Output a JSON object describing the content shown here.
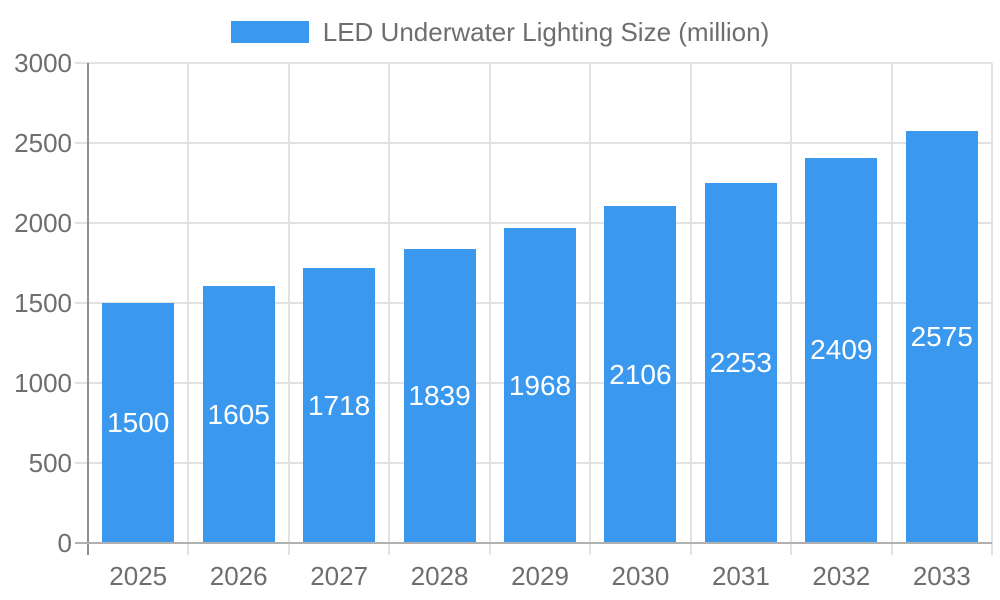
{
  "legend": {
    "label": "LED Underwater Lighting Size (million)"
  },
  "chart_data": {
    "type": "bar",
    "title": "LED Underwater Lighting Size (million)",
    "categories": [
      "2025",
      "2026",
      "2027",
      "2028",
      "2029",
      "2030",
      "2031",
      "2032",
      "2033"
    ],
    "values": [
      1500,
      1605,
      1718,
      1839,
      1968,
      2106,
      2253,
      2409,
      2575
    ],
    "y_ticks": [
      0,
      500,
      1000,
      1500,
      2000,
      2500,
      3000
    ],
    "ylim": [
      0,
      3000
    ],
    "xlabel": "",
    "ylabel": "",
    "grid": true,
    "legend_position": "top",
    "value_labels": "inside-center",
    "colors": {
      "bar": "#3A99EE",
      "value_label": "#ffffff",
      "axis_text": "#6e6e6e",
      "gridline": "#e2e2e2",
      "x_axis_line": "#b0b0b0",
      "y_axis_line": "#8f8f8f"
    }
  }
}
